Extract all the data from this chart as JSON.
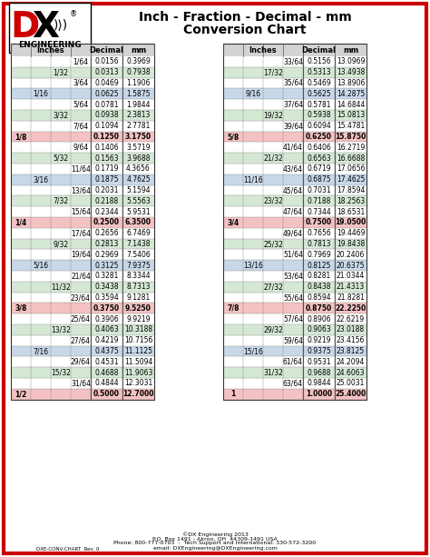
{
  "title_line1": "Inch - Fraction - Decimal - mm",
  "title_line2": "Conversion Chart",
  "footer_line1": "©DX Engineering 2013",
  "footer_line2": "P.O. Box 1491 - Akron, OH  44309-1491 USA",
  "footer_line3": "Phone: 800-777-0703  -  Tech Support and International: 330-572-3200",
  "footer_line4": "email: DXEngineering@DXEngineering.com",
  "footer_line5": "DXE-CONV-CHART  Rev. 0",
  "col_headers": [
    "Inches",
    "Decimal",
    "mm"
  ],
  "left_table": [
    [
      "",
      "",
      "",
      "1/64",
      "0.0156",
      "0.3969"
    ],
    [
      "",
      "",
      "1/32",
      "",
      "0.0313",
      "0.7938"
    ],
    [
      "",
      "",
      "",
      "3/64",
      "0.0469",
      "1.1906"
    ],
    [
      "",
      "1/16",
      "",
      "",
      "0.0625",
      "1.5875"
    ],
    [
      "",
      "",
      "",
      "5/64",
      "0.0781",
      "1.9844"
    ],
    [
      "",
      "",
      "3/32",
      "",
      "0.0938",
      "2.3813"
    ],
    [
      "",
      "",
      "",
      "7/64",
      "0.1094",
      "2.7781"
    ],
    [
      "1/8",
      "",
      "",
      "",
      "0.1250",
      "3.1750"
    ],
    [
      "",
      "",
      "",
      "9/64",
      "0.1406",
      "3.5719"
    ],
    [
      "",
      "",
      "5/32",
      "",
      "0.1563",
      "3.9688"
    ],
    [
      "",
      "",
      "",
      "11/64",
      "0.1719",
      "4.3656"
    ],
    [
      "",
      "3/16",
      "",
      "",
      "0.1875",
      "4.7625"
    ],
    [
      "",
      "",
      "",
      "13/64",
      "0.2031",
      "5.1594"
    ],
    [
      "",
      "",
      "7/32",
      "",
      "0.2188",
      "5.5563"
    ],
    [
      "",
      "",
      "",
      "15/64",
      "0.2344",
      "5.9531"
    ],
    [
      "1/4",
      "",
      "",
      "",
      "0.2500",
      "6.3500"
    ],
    [
      "",
      "",
      "",
      "17/64",
      "0.2656",
      "6.7469"
    ],
    [
      "",
      "",
      "9/32",
      "",
      "0.2813",
      "7.1438"
    ],
    [
      "",
      "",
      "",
      "19/64",
      "0.2969",
      "7.5406"
    ],
    [
      "",
      "5/16",
      "",
      "",
      "0.3125",
      "7.9375"
    ],
    [
      "",
      "",
      "",
      "21/64",
      "0.3281",
      "8.3344"
    ],
    [
      "",
      "",
      "11/32",
      "",
      "0.3438",
      "8.7313"
    ],
    [
      "",
      "",
      "",
      "23/64",
      "0.3594",
      "9.1281"
    ],
    [
      "3/8",
      "",
      "",
      "",
      "0.3750",
      "9.5250"
    ],
    [
      "",
      "",
      "",
      "25/64",
      "0.3906",
      "9.9219"
    ],
    [
      "",
      "",
      "13/32",
      "",
      "0.4063",
      "10.3188"
    ],
    [
      "",
      "",
      "",
      "27/64",
      "0.4219",
      "10.7156"
    ],
    [
      "",
      "7/16",
      "",
      "",
      "0.4375",
      "11.1125"
    ],
    [
      "",
      "",
      "",
      "29/64",
      "0.4531",
      "11.5094"
    ],
    [
      "",
      "",
      "15/32",
      "",
      "0.4688",
      "11.9063"
    ],
    [
      "",
      "",
      "",
      "31/64",
      "0.4844",
      "12.3031"
    ],
    [
      "1/2",
      "",
      "",
      "",
      "0.5000",
      "12.7000"
    ]
  ],
  "right_table": [
    [
      "",
      "",
      "",
      "33/64",
      "0.5156",
      "13.0969"
    ],
    [
      "",
      "",
      "17/32",
      "",
      "0.5313",
      "13.4938"
    ],
    [
      "",
      "",
      "",
      "35/64",
      "0.5469",
      "13.8906"
    ],
    [
      "",
      "9/16",
      "",
      "",
      "0.5625",
      "14.2875"
    ],
    [
      "",
      "",
      "",
      "37/64",
      "0.5781",
      "14.6844"
    ],
    [
      "",
      "",
      "19/32",
      "",
      "0.5938",
      "15.0813"
    ],
    [
      "",
      "",
      "",
      "39/64",
      "0.6094",
      "15.4781"
    ],
    [
      "5/8",
      "",
      "",
      "",
      "0.6250",
      "15.8750"
    ],
    [
      "",
      "",
      "",
      "41/64",
      "0.6406",
      "16.2719"
    ],
    [
      "",
      "",
      "21/32",
      "",
      "0.6563",
      "16.6688"
    ],
    [
      "",
      "",
      "",
      "43/64",
      "0.6719",
      "17.0656"
    ],
    [
      "",
      "11/16",
      "",
      "",
      "0.6875",
      "17.4625"
    ],
    [
      "",
      "",
      "",
      "45/64",
      "0.7031",
      "17.8594"
    ],
    [
      "",
      "",
      "23/32",
      "",
      "0.7188",
      "18.2563"
    ],
    [
      "",
      "",
      "",
      "47/64",
      "0.7344",
      "18.6531"
    ],
    [
      "3/4",
      "",
      "",
      "",
      "0.7500",
      "19.0500"
    ],
    [
      "",
      "",
      "",
      "49/64",
      "0.7656",
      "19.4469"
    ],
    [
      "",
      "",
      "25/32",
      "",
      "0.7813",
      "19.8438"
    ],
    [
      "",
      "",
      "",
      "51/64",
      "0.7969",
      "20.2406"
    ],
    [
      "",
      "13/16",
      "",
      "",
      "0.8125",
      "20.6375"
    ],
    [
      "",
      "",
      "",
      "53/64",
      "0.8281",
      "21.0344"
    ],
    [
      "",
      "",
      "27/32",
      "",
      "0.8438",
      "21.4313"
    ],
    [
      "",
      "",
      "",
      "55/64",
      "0.8594",
      "21.8281"
    ],
    [
      "7/8",
      "",
      "",
      "",
      "0.8750",
      "22.2250"
    ],
    [
      "",
      "",
      "",
      "57/64",
      "0.8906",
      "22.6219"
    ],
    [
      "",
      "",
      "29/32",
      "",
      "0.9063",
      "23.0188"
    ],
    [
      "",
      "",
      "",
      "59/64",
      "0.9219",
      "23.4156"
    ],
    [
      "",
      "15/16",
      "",
      "",
      "0.9375",
      "23.8125"
    ],
    [
      "",
      "",
      "",
      "61/64",
      "0.9531",
      "24.2094"
    ],
    [
      "",
      "",
      "31/32",
      "",
      "0.9688",
      "24.6063"
    ],
    [
      "",
      "",
      "",
      "63/64",
      "0.9844",
      "25.0031"
    ],
    [
      "1",
      "",
      "",
      "",
      "1.0000",
      "25.4000"
    ]
  ],
  "color_whole": "#f4c2c2",
  "color_8th": "#f4c2c2",
  "color_16th": "#c8d8e8",
  "color_32nd": "#d5e8d4",
  "color_plain": "#ffffff",
  "color_header": "#d3d3d3",
  "color_border": "#333333",
  "color_red": "#cc0000",
  "color_title_bg": "#ffffff"
}
